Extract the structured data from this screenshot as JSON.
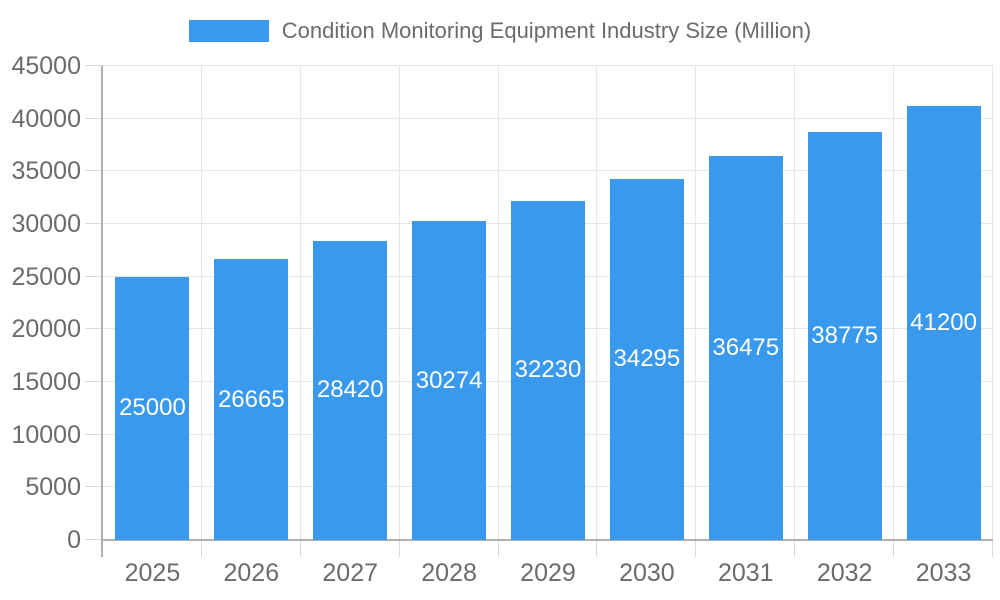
{
  "legend": {
    "label": "Condition Monitoring Equipment Industry Size (Million)"
  },
  "chart_data": {
    "type": "bar",
    "title": "Condition Monitoring Equipment Industry Size (Million)",
    "categories": [
      "2025",
      "2026",
      "2027",
      "2028",
      "2029",
      "2030",
      "2031",
      "2032",
      "2033"
    ],
    "series": [
      {
        "name": "Condition Monitoring Equipment Industry Size (Million)",
        "values": [
          25000,
          26665,
          28420,
          30274,
          32230,
          34295,
          36475,
          38775,
          41200
        ]
      }
    ],
    "bar_value_labels": [
      "25000",
      "26665",
      "28420",
      "30274",
      "32230",
      "34295",
      "36475",
      "38775",
      "41200"
    ],
    "xlabel": "",
    "ylabel": "",
    "ylim": [
      0,
      45000
    ],
    "ytick_step": 5000,
    "yticks": [
      0,
      5000,
      10000,
      15000,
      20000,
      25000,
      30000,
      35000,
      40000,
      45000
    ],
    "grid": true,
    "legend_position": "top",
    "colors": {
      "bar": "#3999EC",
      "grid": "#E6E6E6",
      "tick": "#D9D9D9",
      "axis": "#B0B0B0",
      "text": "#6B6B6B",
      "bar_label": "#FFFFFF"
    }
  }
}
